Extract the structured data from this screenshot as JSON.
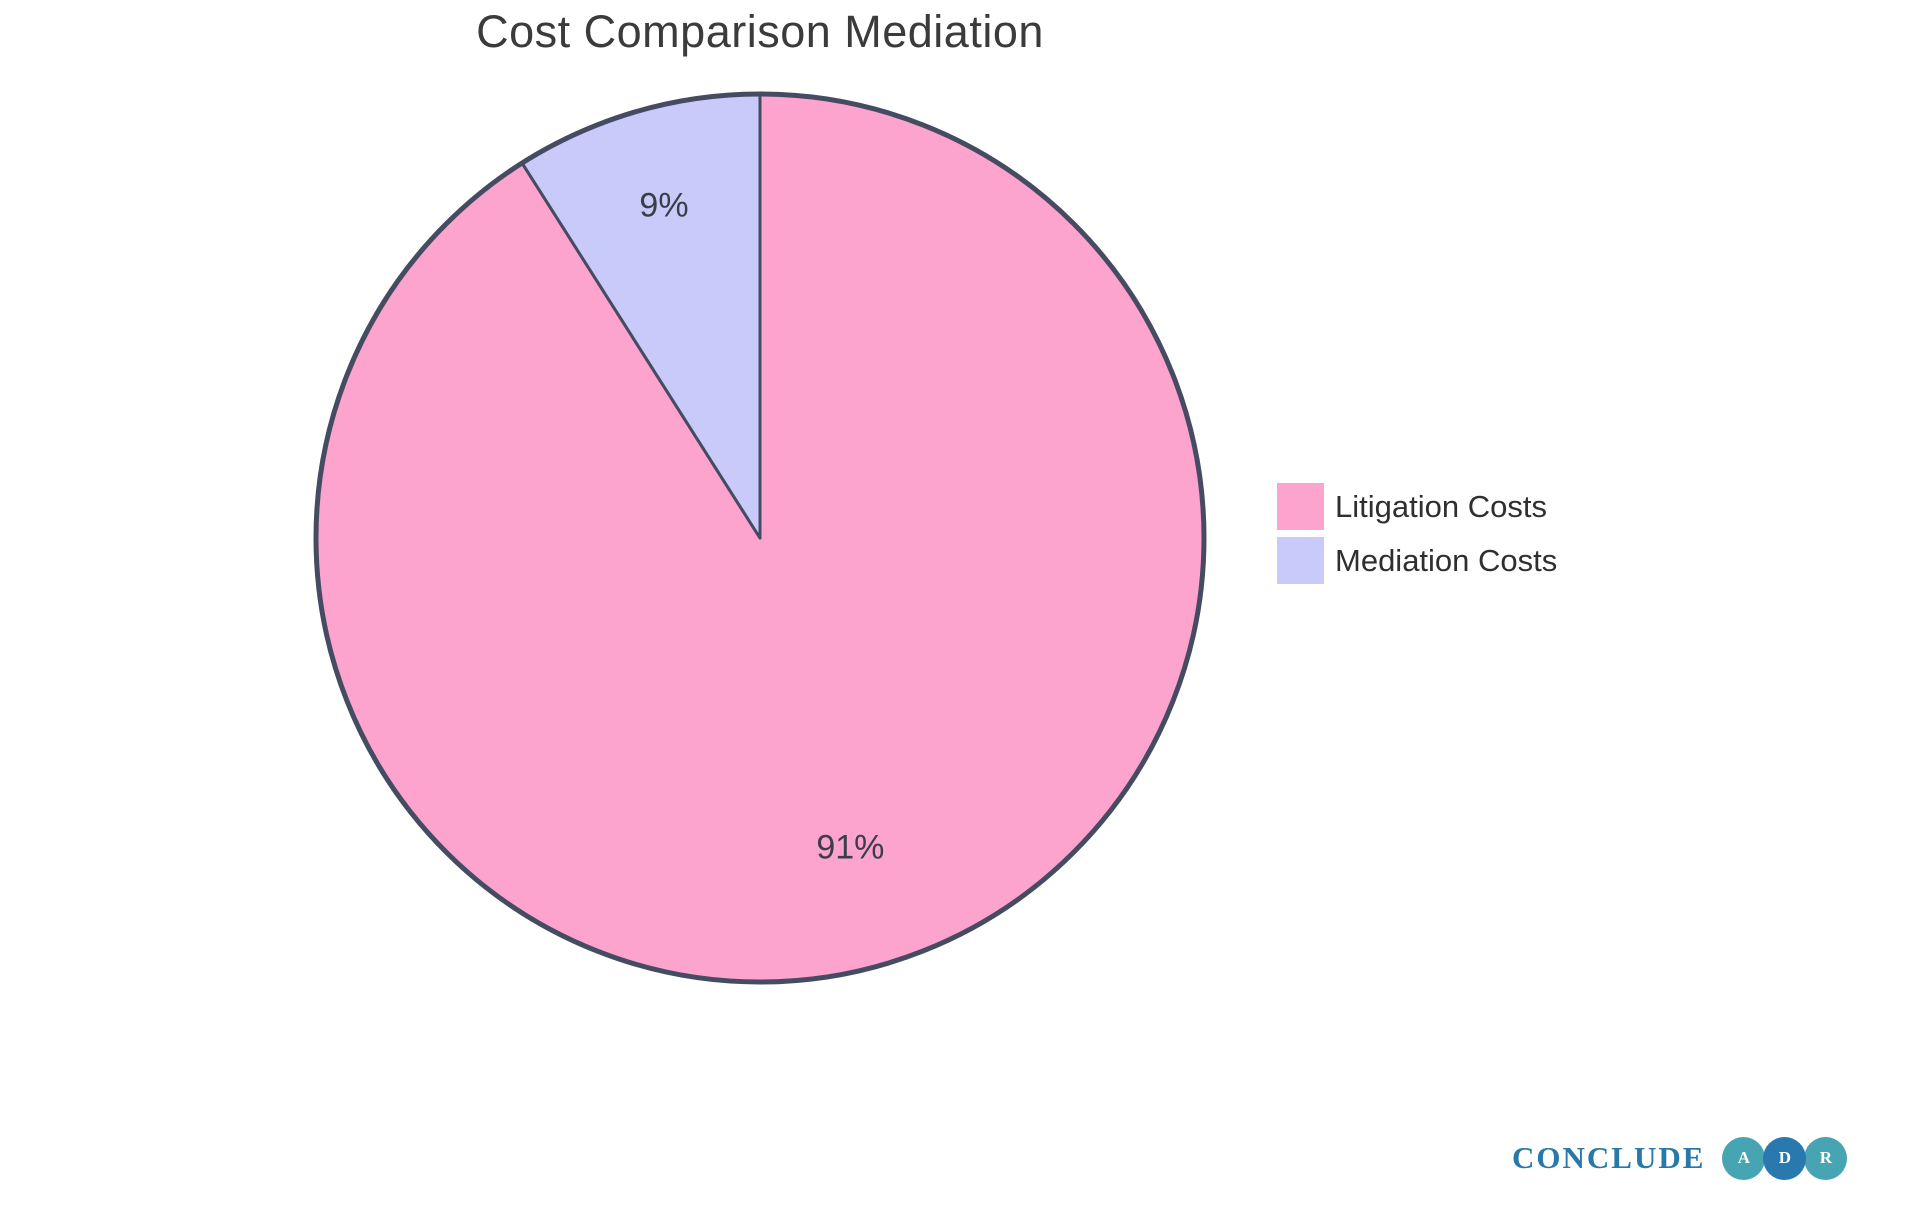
{
  "title": "Cost Comparison Mediation",
  "chart_data": {
    "type": "pie",
    "title": "Cost Comparison Mediation",
    "categories": [
      "Litigation Costs",
      "Mediation Costs"
    ],
    "values": [
      91,
      9
    ],
    "slice_labels": [
      "91%",
      "9%"
    ],
    "colors": [
      "#FCA3CE",
      "#C8CBF9"
    ],
    "stroke_color": "#454B61",
    "start_angle": "12-oclock",
    "direction": "clockwise",
    "legend_position": "right",
    "background": "#FFFFFF"
  },
  "legend": {
    "items": [
      {
        "label": "Litigation Costs",
        "color": "#FCA3CE"
      },
      {
        "label": "Mediation Costs",
        "color": "#C8CBF9"
      }
    ]
  },
  "branding": {
    "wordmark": "CONCLUDE",
    "wordmark_color": "#2878A8",
    "badges": [
      {
        "letter": "A",
        "color": "#47A4B2"
      },
      {
        "letter": "D",
        "color": "#2A79AE"
      },
      {
        "letter": "R",
        "color": "#47A4B2"
      }
    ]
  }
}
